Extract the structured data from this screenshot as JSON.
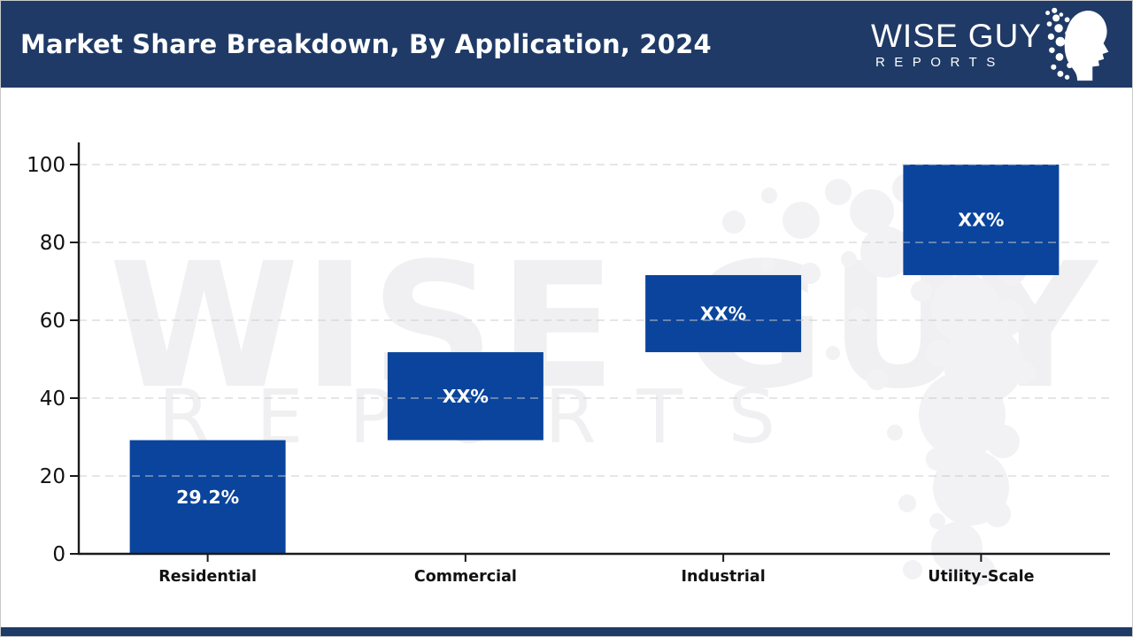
{
  "header": {
    "title": "Market Share Breakdown, By Application, 2024",
    "logo": {
      "name": "WISE GUY",
      "subtitle": "REPORTS"
    }
  },
  "watermark": {
    "name": "WISE GUY",
    "subtitle": "REPORTS"
  },
  "chart_data": {
    "type": "bar",
    "subtype": "waterfall",
    "title": "Market Share Breakdown, By Application, 2024",
    "categories": [
      "Residential",
      "Commercial",
      "Industrial",
      "Utility-Scale"
    ],
    "series": [
      {
        "name": "Market Share",
        "segments": [
          {
            "category": "Residential",
            "start": 0,
            "end": 29.2,
            "label": "29.2%"
          },
          {
            "category": "Commercial",
            "start": 29.2,
            "end": 51.8,
            "label": "XX%"
          },
          {
            "category": "Industrial",
            "start": 51.8,
            "end": 71.6,
            "label": "XX%"
          },
          {
            "category": "Utility-Scale",
            "start": 71.6,
            "end": 100,
            "label": "XX%"
          }
        ]
      }
    ],
    "xlabel": "",
    "ylabel": "",
    "ylim": [
      0,
      100
    ],
    "yticks": [
      0,
      20,
      40,
      60,
      80,
      100
    ],
    "grid": "horizontal-dashed",
    "legend": null,
    "colors": {
      "bar": "#0a449c",
      "bar_label": "#ffffff",
      "header": "#1f3a66",
      "grid": "#d9d9d9",
      "axis": "#1a1a1a",
      "tick_label": "#111111"
    }
  }
}
